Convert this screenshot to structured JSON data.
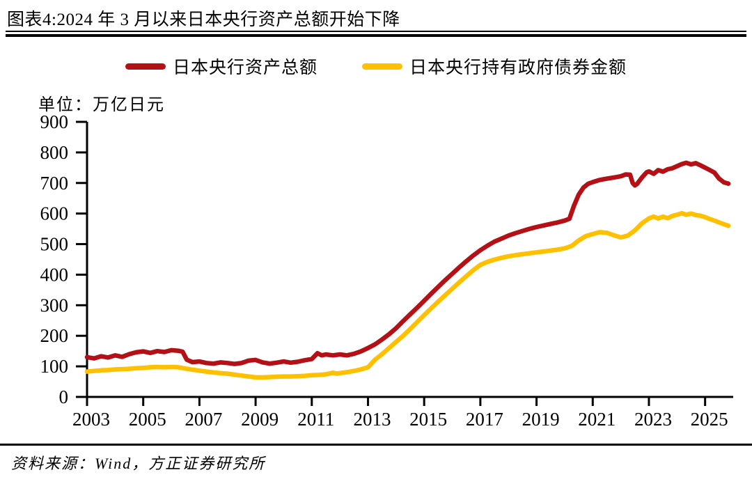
{
  "header": {
    "title": "图表4:2024 年 3 月以来日本央行资产总额开始下降"
  },
  "legend": [
    {
      "label": "日本央行资产总额",
      "color": "#B41116"
    },
    {
      "label": "日本央行持有政府债券金额",
      "color": "#FFC000"
    }
  ],
  "unit_label": "单位：万亿日元",
  "footer": {
    "source": "资料来源：Wind，方正证券研究所"
  },
  "colors": {
    "axis": "#000000",
    "series_assets": "#B41116",
    "series_bonds": "#FFC000"
  },
  "chart_data": {
    "type": "line",
    "title": "图表4:2024 年 3 月以来日本央行资产总额开始下降",
    "ylabel": "单位：万亿日元",
    "xlabel": "",
    "ylim": [
      0,
      900
    ],
    "ytick_interval": 100,
    "yticks": [
      0,
      100,
      200,
      300,
      400,
      500,
      600,
      700,
      800,
      900
    ],
    "xlim": [
      2003,
      2026
    ],
    "xticks": [
      2003,
      2005,
      2007,
      2009,
      2011,
      2013,
      2015,
      2017,
      2019,
      2021,
      2023,
      2025
    ],
    "grid": false,
    "legend_position": "top",
    "series": [
      {
        "name": "日本央行资产总额",
        "color": "#B41116",
        "points": [
          [
            2003.0,
            130
          ],
          [
            2003.25,
            126
          ],
          [
            2003.5,
            133
          ],
          [
            2003.75,
            129
          ],
          [
            2004.0,
            136
          ],
          [
            2004.25,
            131
          ],
          [
            2004.5,
            140
          ],
          [
            2004.75,
            146
          ],
          [
            2005.0,
            149
          ],
          [
            2005.25,
            144
          ],
          [
            2005.5,
            150
          ],
          [
            2005.75,
            147
          ],
          [
            2006.0,
            153
          ],
          [
            2006.25,
            151
          ],
          [
            2006.4,
            148
          ],
          [
            2006.55,
            122
          ],
          [
            2006.75,
            114
          ],
          [
            2007.0,
            116
          ],
          [
            2007.25,
            111
          ],
          [
            2007.5,
            109
          ],
          [
            2007.75,
            113
          ],
          [
            2008.0,
            111
          ],
          [
            2008.25,
            108
          ],
          [
            2008.5,
            111
          ],
          [
            2008.75,
            119
          ],
          [
            2009.0,
            121
          ],
          [
            2009.25,
            113
          ],
          [
            2009.5,
            109
          ],
          [
            2009.75,
            112
          ],
          [
            2010.0,
            116
          ],
          [
            2010.25,
            112
          ],
          [
            2010.5,
            115
          ],
          [
            2010.75,
            120
          ],
          [
            2011.0,
            124
          ],
          [
            2011.2,
            143
          ],
          [
            2011.35,
            136
          ],
          [
            2011.5,
            139
          ],
          [
            2011.75,
            136
          ],
          [
            2012.0,
            139
          ],
          [
            2012.25,
            136
          ],
          [
            2012.5,
            141
          ],
          [
            2012.75,
            149
          ],
          [
            2013.0,
            160
          ],
          [
            2013.25,
            172
          ],
          [
            2013.5,
            188
          ],
          [
            2013.75,
            205
          ],
          [
            2014.0,
            225
          ],
          [
            2014.25,
            248
          ],
          [
            2014.5,
            270
          ],
          [
            2014.75,
            292
          ],
          [
            2015.0,
            315
          ],
          [
            2015.25,
            338
          ],
          [
            2015.5,
            360
          ],
          [
            2015.75,
            382
          ],
          [
            2016.0,
            403
          ],
          [
            2016.25,
            424
          ],
          [
            2016.5,
            444
          ],
          [
            2016.75,
            463
          ],
          [
            2017.0,
            480
          ],
          [
            2017.25,
            495
          ],
          [
            2017.5,
            508
          ],
          [
            2017.75,
            518
          ],
          [
            2018.0,
            528
          ],
          [
            2018.25,
            536
          ],
          [
            2018.5,
            543
          ],
          [
            2018.75,
            550
          ],
          [
            2019.0,
            556
          ],
          [
            2019.25,
            561
          ],
          [
            2019.5,
            566
          ],
          [
            2019.75,
            571
          ],
          [
            2020.0,
            577
          ],
          [
            2020.17,
            583
          ],
          [
            2020.33,
            625
          ],
          [
            2020.5,
            662
          ],
          [
            2020.67,
            685
          ],
          [
            2020.83,
            697
          ],
          [
            2021.0,
            703
          ],
          [
            2021.25,
            710
          ],
          [
            2021.5,
            714
          ],
          [
            2021.75,
            718
          ],
          [
            2022.0,
            722
          ],
          [
            2022.17,
            728
          ],
          [
            2022.33,
            727
          ],
          [
            2022.42,
            700
          ],
          [
            2022.5,
            692
          ],
          [
            2022.58,
            697
          ],
          [
            2022.75,
            718
          ],
          [
            2022.92,
            735
          ],
          [
            2023.0,
            738
          ],
          [
            2023.17,
            730
          ],
          [
            2023.33,
            742
          ],
          [
            2023.5,
            737
          ],
          [
            2023.67,
            745
          ],
          [
            2023.83,
            748
          ],
          [
            2024.0,
            755
          ],
          [
            2024.17,
            762
          ],
          [
            2024.33,
            766
          ],
          [
            2024.5,
            761
          ],
          [
            2024.67,
            765
          ],
          [
            2024.83,
            758
          ],
          [
            2025.0,
            750
          ],
          [
            2025.17,
            742
          ],
          [
            2025.33,
            734
          ],
          [
            2025.5,
            714
          ],
          [
            2025.67,
            702
          ],
          [
            2025.83,
            698
          ]
        ]
      },
      {
        "name": "日本央行持有政府债券金额",
        "color": "#FFC000",
        "points": [
          [
            2003.0,
            83
          ],
          [
            2003.25,
            85
          ],
          [
            2003.5,
            87
          ],
          [
            2003.75,
            88
          ],
          [
            2004.0,
            90
          ],
          [
            2004.25,
            91
          ],
          [
            2004.5,
            92
          ],
          [
            2004.75,
            94
          ],
          [
            2005.0,
            95
          ],
          [
            2005.25,
            97
          ],
          [
            2005.5,
            98
          ],
          [
            2005.75,
            97
          ],
          [
            2006.0,
            98
          ],
          [
            2006.25,
            97
          ],
          [
            2006.5,
            93
          ],
          [
            2006.75,
            89
          ],
          [
            2007.0,
            86
          ],
          [
            2007.25,
            83
          ],
          [
            2007.5,
            80
          ],
          [
            2007.75,
            78
          ],
          [
            2008.0,
            76
          ],
          [
            2008.25,
            73
          ],
          [
            2008.5,
            70
          ],
          [
            2008.75,
            67
          ],
          [
            2009.0,
            64
          ],
          [
            2009.25,
            64
          ],
          [
            2009.5,
            65
          ],
          [
            2009.75,
            66
          ],
          [
            2010.0,
            67
          ],
          [
            2010.25,
            67
          ],
          [
            2010.5,
            68
          ],
          [
            2010.75,
            69
          ],
          [
            2011.0,
            71
          ],
          [
            2011.25,
            72
          ],
          [
            2011.5,
            74
          ],
          [
            2011.75,
            79
          ],
          [
            2011.9,
            76
          ],
          [
            2012.0,
            78
          ],
          [
            2012.25,
            81
          ],
          [
            2012.5,
            85
          ],
          [
            2012.75,
            90
          ],
          [
            2013.0,
            97
          ],
          [
            2013.25,
            122
          ],
          [
            2013.5,
            140
          ],
          [
            2013.75,
            160
          ],
          [
            2014.0,
            180
          ],
          [
            2014.25,
            200
          ],
          [
            2014.5,
            222
          ],
          [
            2014.75,
            245
          ],
          [
            2015.0,
            268
          ],
          [
            2015.25,
            290
          ],
          [
            2015.5,
            312
          ],
          [
            2015.75,
            333
          ],
          [
            2016.0,
            354
          ],
          [
            2016.25,
            375
          ],
          [
            2016.5,
            395
          ],
          [
            2016.75,
            415
          ],
          [
            2017.0,
            432
          ],
          [
            2017.25,
            442
          ],
          [
            2017.5,
            449
          ],
          [
            2017.75,
            455
          ],
          [
            2018.0,
            460
          ],
          [
            2018.25,
            464
          ],
          [
            2018.5,
            467
          ],
          [
            2018.75,
            470
          ],
          [
            2019.0,
            473
          ],
          [
            2019.25,
            476
          ],
          [
            2019.5,
            479
          ],
          [
            2019.75,
            482
          ],
          [
            2020.0,
            486
          ],
          [
            2020.25,
            494
          ],
          [
            2020.5,
            512
          ],
          [
            2020.75,
            526
          ],
          [
            2021.0,
            533
          ],
          [
            2021.25,
            539
          ],
          [
            2021.5,
            537
          ],
          [
            2021.75,
            529
          ],
          [
            2022.0,
            522
          ],
          [
            2022.25,
            528
          ],
          [
            2022.5,
            545
          ],
          [
            2022.75,
            568
          ],
          [
            2023.0,
            584
          ],
          [
            2023.17,
            590
          ],
          [
            2023.33,
            584
          ],
          [
            2023.5,
            590
          ],
          [
            2023.67,
            585
          ],
          [
            2023.83,
            592
          ],
          [
            2024.0,
            596
          ],
          [
            2024.17,
            601
          ],
          [
            2024.33,
            596
          ],
          [
            2024.5,
            600
          ],
          [
            2024.67,
            595
          ],
          [
            2024.83,
            593
          ],
          [
            2025.0,
            588
          ],
          [
            2025.17,
            582
          ],
          [
            2025.33,
            577
          ],
          [
            2025.5,
            571
          ],
          [
            2025.67,
            565
          ],
          [
            2025.83,
            560
          ]
        ]
      }
    ]
  }
}
